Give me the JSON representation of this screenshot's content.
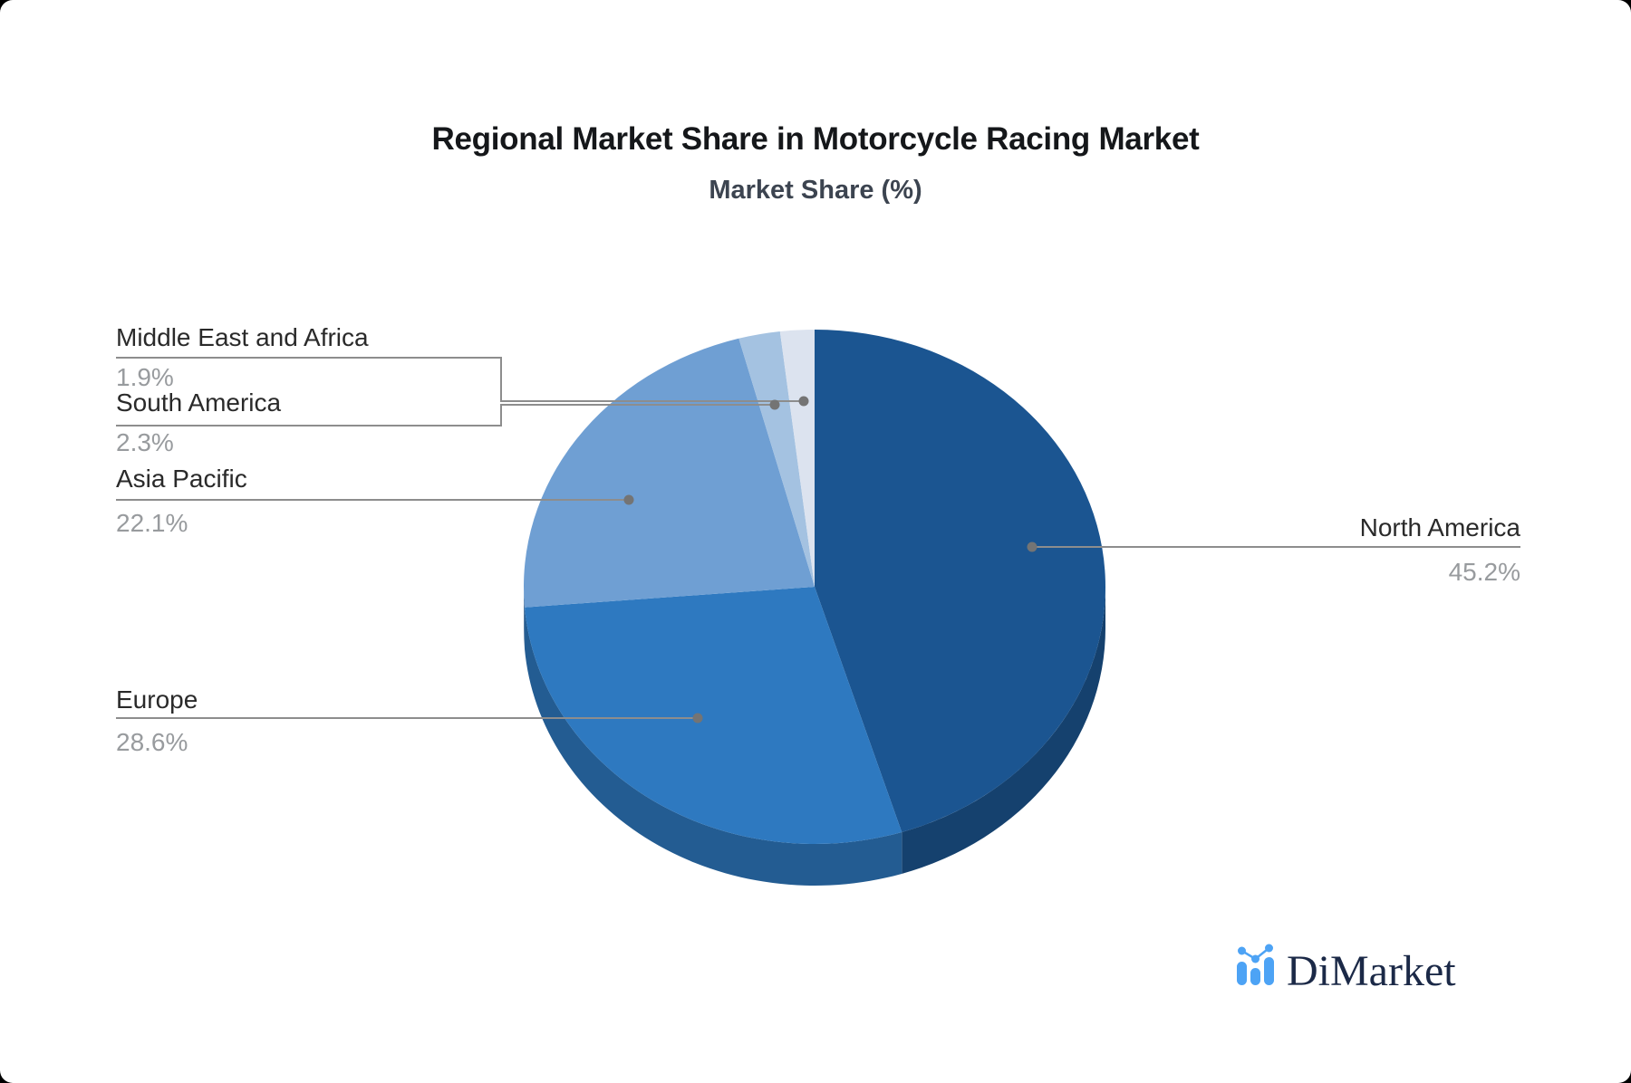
{
  "title": "Regional Market Share in Motorcycle Racing Market",
  "subtitle": "Market Share (%)",
  "brand": {
    "name": "DiMarket"
  },
  "chart_data": {
    "type": "pie",
    "title": "Regional Market Share in Motorcycle Racing Market",
    "subtitle": "Market Share (%)",
    "unit": "%",
    "style": "3d-pie, starts at 12 o'clock, clockwise",
    "legend_position": "callout-labels",
    "slices": [
      {
        "label": "North America",
        "value": 45.2,
        "pct_label": "45.2%",
        "color": "#1B5591"
      },
      {
        "label": "Europe",
        "value": 28.6,
        "pct_label": "28.6%",
        "color": "#2E79C0"
      },
      {
        "label": "Asia Pacific",
        "value": 22.1,
        "pct_label": "22.1%",
        "color": "#6F9FD3"
      },
      {
        "label": "South America",
        "value": 2.3,
        "pct_label": "2.3%",
        "color": "#A4C2E1"
      },
      {
        "label": "Middle East and Africa",
        "value": 1.9,
        "pct_label": "1.9%",
        "color": "#DCE3EF"
      }
    ],
    "colors": {
      "leader_line": "#8d8d8d",
      "marker_dot": "#747474",
      "label_text": "#2a2a2a",
      "pct_text": "#989b9e",
      "brand_blue": "#4DA3F5",
      "brand_navy": "#1b2947"
    }
  }
}
